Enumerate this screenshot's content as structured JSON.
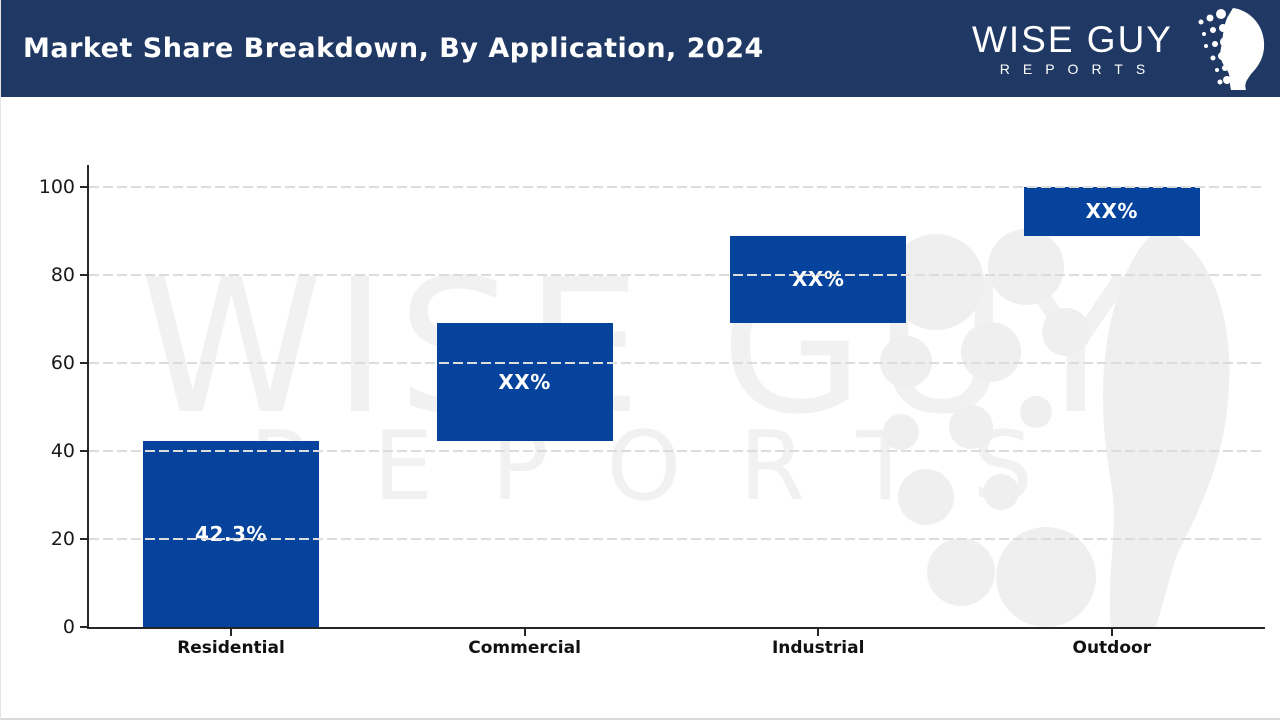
{
  "header": {
    "title": "Market Share Breakdown, By Application, 2024",
    "bg_color": "#1f3864",
    "logo": {
      "line1": "WISE GUY",
      "line2": "REPORTS"
    }
  },
  "watermark": {
    "line1": "WISE GUY",
    "line2": "REPORTS"
  },
  "chart_data": {
    "type": "bar",
    "subtype": "waterfall",
    "title": "Market Share Breakdown, By Application, 2024",
    "categories": [
      "Residential",
      "Commercial",
      "Industrial",
      "Outdoor"
    ],
    "segments": [
      {
        "category": "Residential",
        "start": 0,
        "end": 42.3,
        "label": "42.3%"
      },
      {
        "category": "Commercial",
        "start": 42.3,
        "end": 69.1,
        "label": "XX%"
      },
      {
        "category": "Industrial",
        "start": 69.1,
        "end": 88.9,
        "label": "XX%"
      },
      {
        "category": "Outdoor",
        "start": 88.9,
        "end": 100,
        "label": "XX%"
      }
    ],
    "y_ticks": [
      0,
      20,
      40,
      60,
      80,
      100
    ],
    "ylim": [
      0,
      100
    ],
    "xlabel": "",
    "ylabel": "",
    "bar_color": "#05439c",
    "grid": true,
    "grid_style": "dashed",
    "legend": false
  }
}
